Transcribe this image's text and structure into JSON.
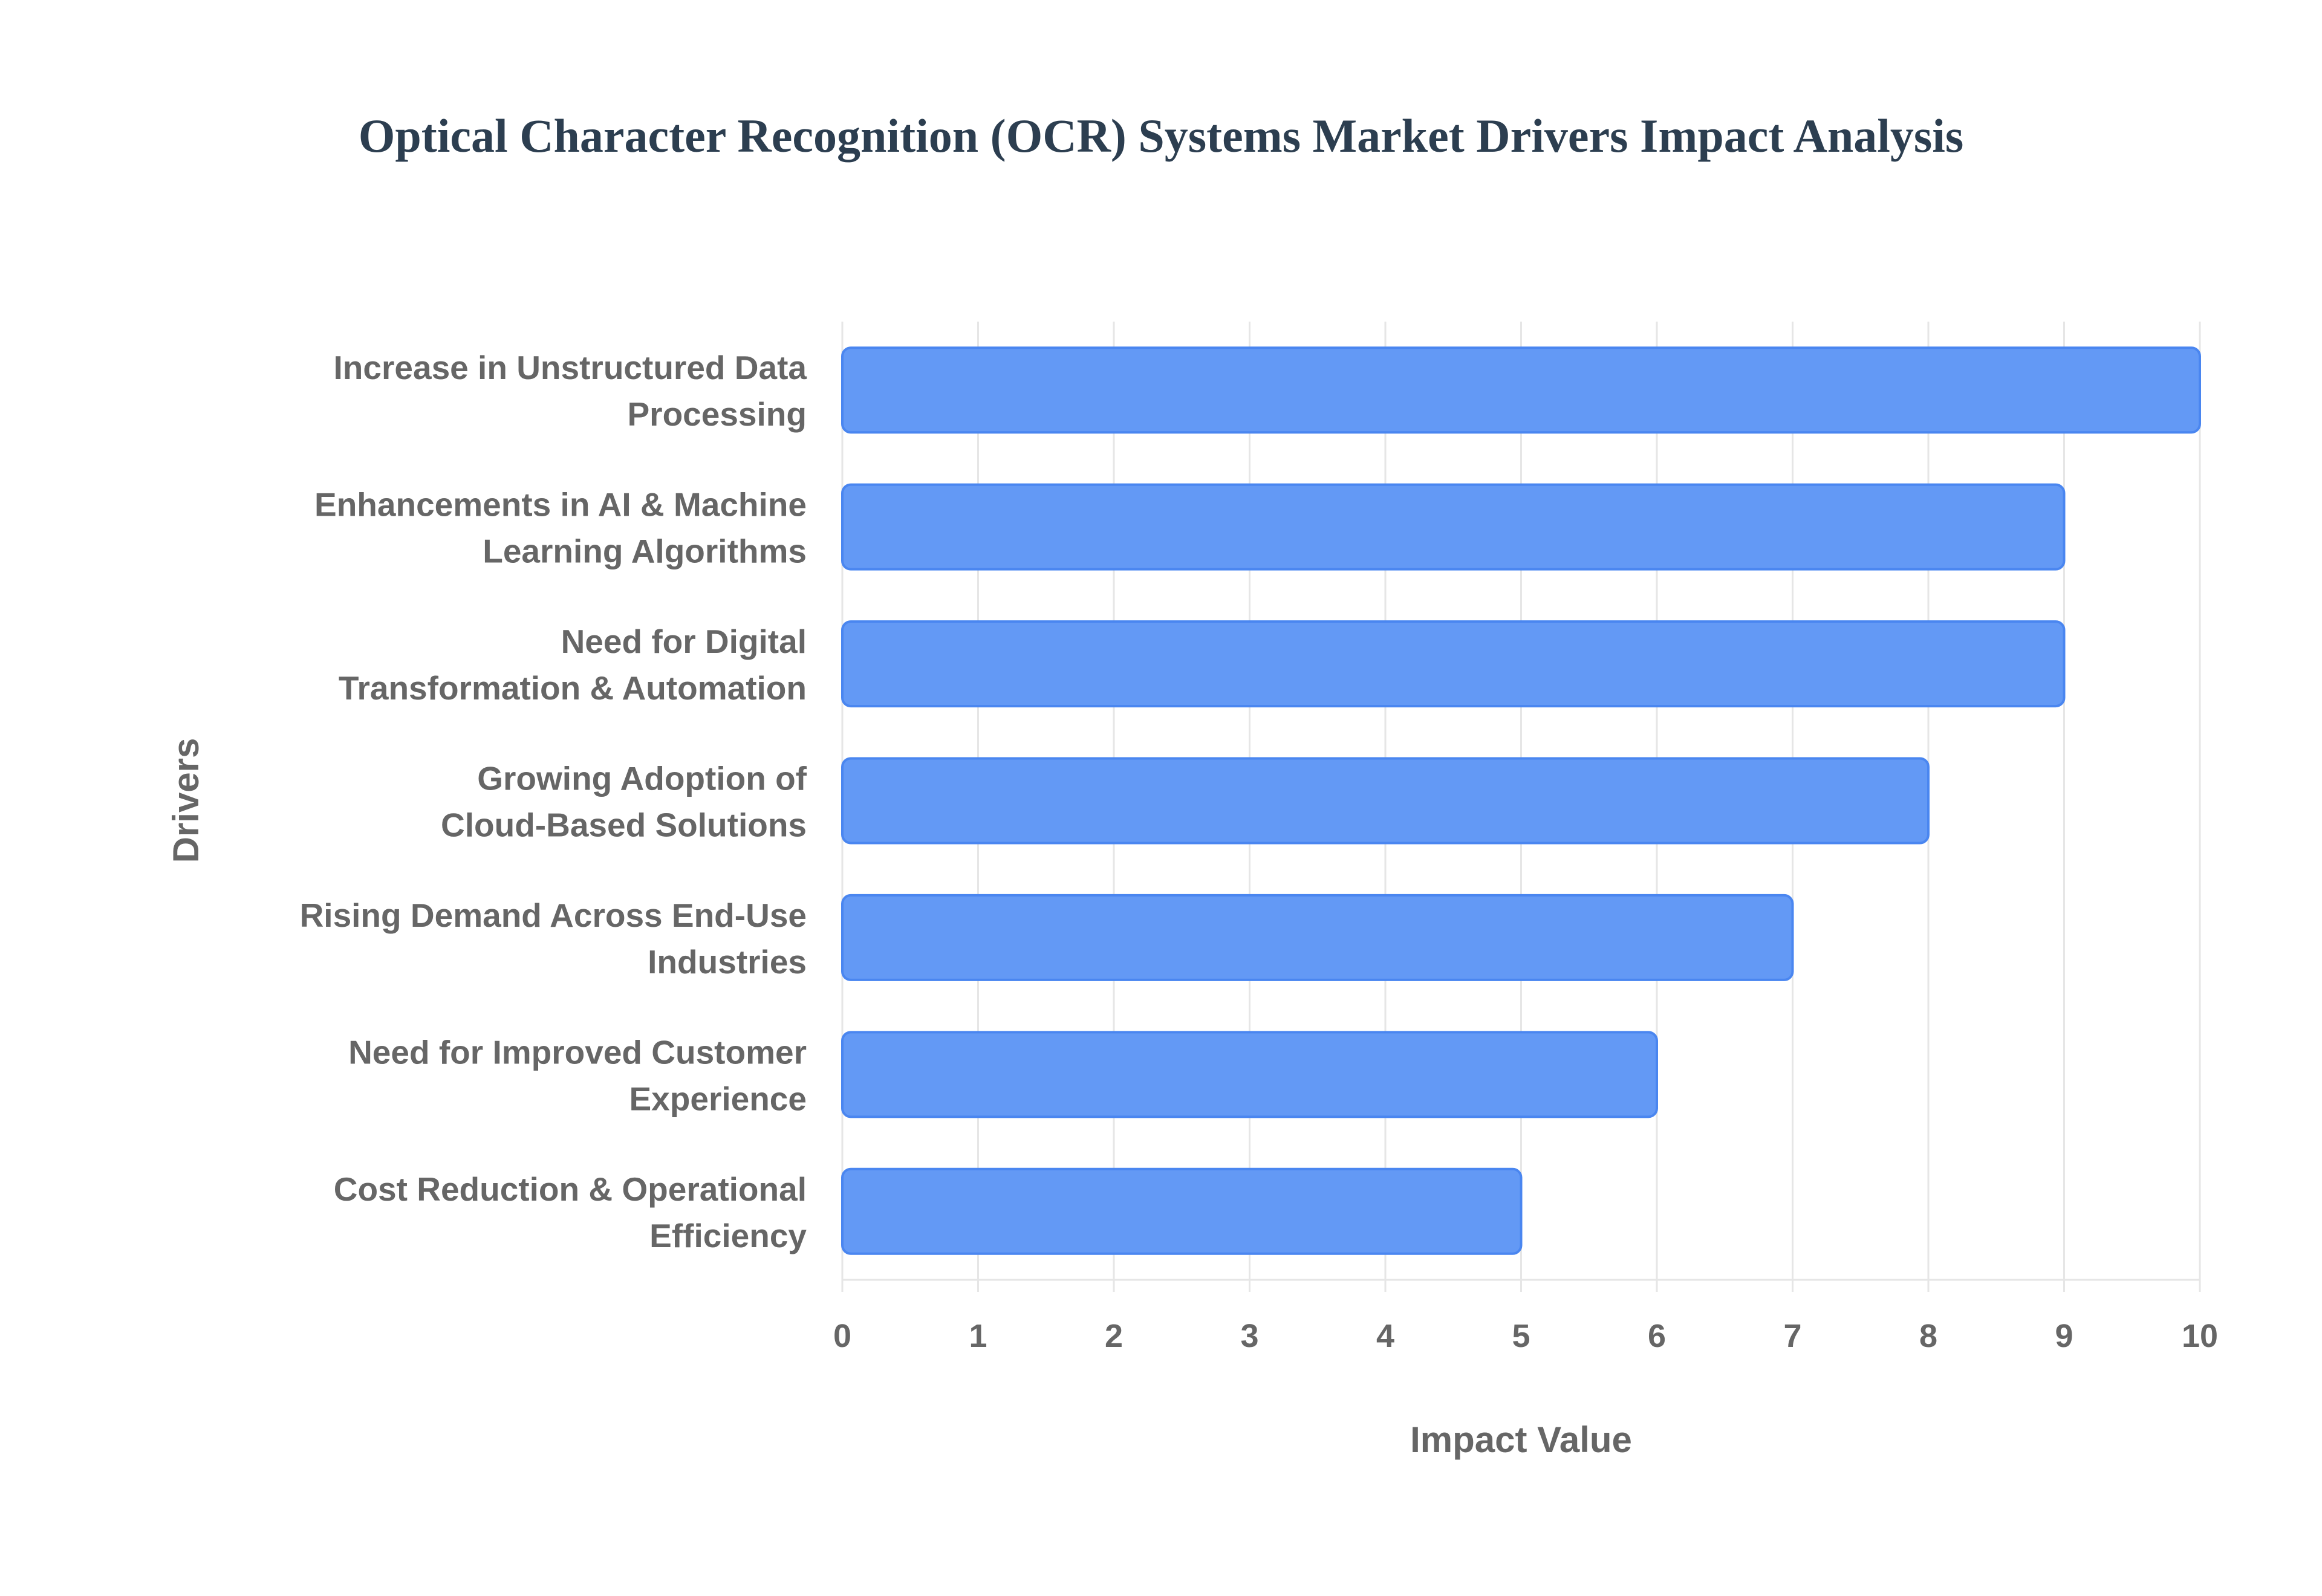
{
  "chart_data": {
    "type": "bar",
    "orientation": "horizontal",
    "title": "Optical Character Recognition (OCR) Systems Market Drivers Impact Analysis",
    "xlabel": "Impact Value",
    "ylabel": "Drivers",
    "categories": [
      [
        "Increase in Unstructured Data",
        "Processing"
      ],
      [
        "Enhancements in AI & Machine",
        "Learning Algorithms"
      ],
      [
        "Need for Digital",
        "Transformation & Automation"
      ],
      [
        "Growing Adoption of",
        "Cloud-Based Solutions"
      ],
      [
        "Rising Demand Across End-Use",
        "Industries"
      ],
      [
        "Need for Improved Customer",
        "Experience"
      ],
      [
        "Cost Reduction & Operational",
        "Efficiency"
      ]
    ],
    "values": [
      10,
      9,
      9,
      8,
      7,
      6,
      5
    ],
    "xlim": [
      0,
      10
    ],
    "xticks": [
      "0",
      "1",
      "2",
      "3",
      "4",
      "5",
      "6",
      "7",
      "8",
      "9",
      "10"
    ],
    "grid": true,
    "colors": {
      "bar": "#6399f5",
      "bar_border": "#4a86f0",
      "grid": "#e6e6e6",
      "text": "#666666",
      "title": "#2c3e50"
    }
  }
}
